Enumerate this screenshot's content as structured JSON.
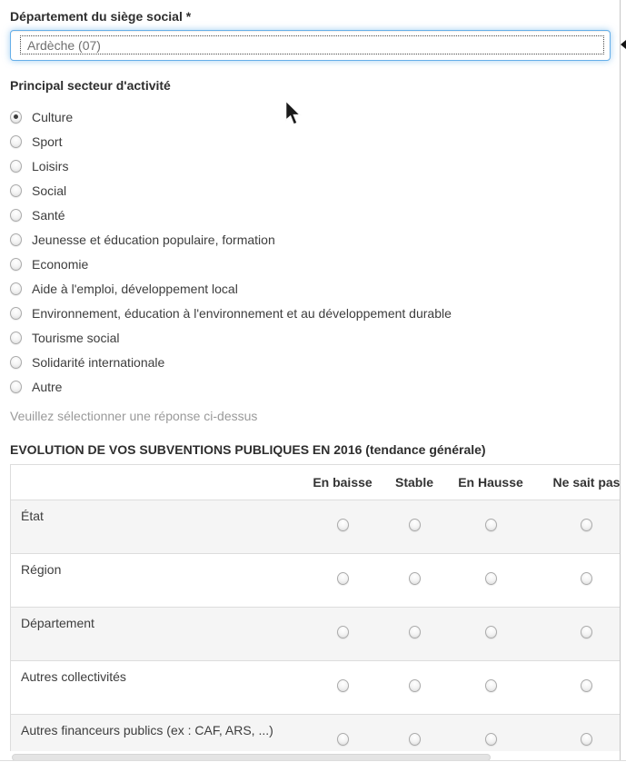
{
  "page": {
    "department": {
      "label": "Département du siège social *",
      "value": "Ardèche (07)"
    },
    "sector": {
      "label": "Principal secteur d'activité",
      "options": [
        {
          "label": "Culture",
          "selected": true
        },
        {
          "label": "Sport",
          "selected": false
        },
        {
          "label": "Loisirs",
          "selected": false
        },
        {
          "label": "Social",
          "selected": false
        },
        {
          "label": "Santé",
          "selected": false
        },
        {
          "label": "Jeunesse et éducation populaire, formation",
          "selected": false
        },
        {
          "label": "Economie",
          "selected": false
        },
        {
          "label": "Aide à l'emploi, développement local",
          "selected": false
        },
        {
          "label": "Environnement, éducation à l'environnement et au développement durable",
          "selected": false
        },
        {
          "label": "Tourisme social",
          "selected": false
        },
        {
          "label": "Solidarité internationale",
          "selected": false
        },
        {
          "label": "Autre",
          "selected": false
        }
      ],
      "helper": "Veuillez sélectionner une réponse ci-dessus"
    },
    "subsidies": {
      "heading": "EVOLUTION DE VOS SUBVENTIONS PUBLIQUES EN 2016 (tendance générale)",
      "columns": [
        "En baisse",
        "Stable",
        "En Hausse",
        "Ne sait pas"
      ],
      "rows": [
        "État",
        "Région",
        "Département",
        "Autres collectivités",
        "Autres financeurs publics (ex : CAF, ARS, ...)"
      ]
    },
    "colors": {
      "focus_border": "#66afe9",
      "text_dark": "#2e2e2e",
      "text_muted": "#9a9a9a",
      "table_border": "#dddddd",
      "stripe_bg": "#f5f5f5"
    }
  }
}
